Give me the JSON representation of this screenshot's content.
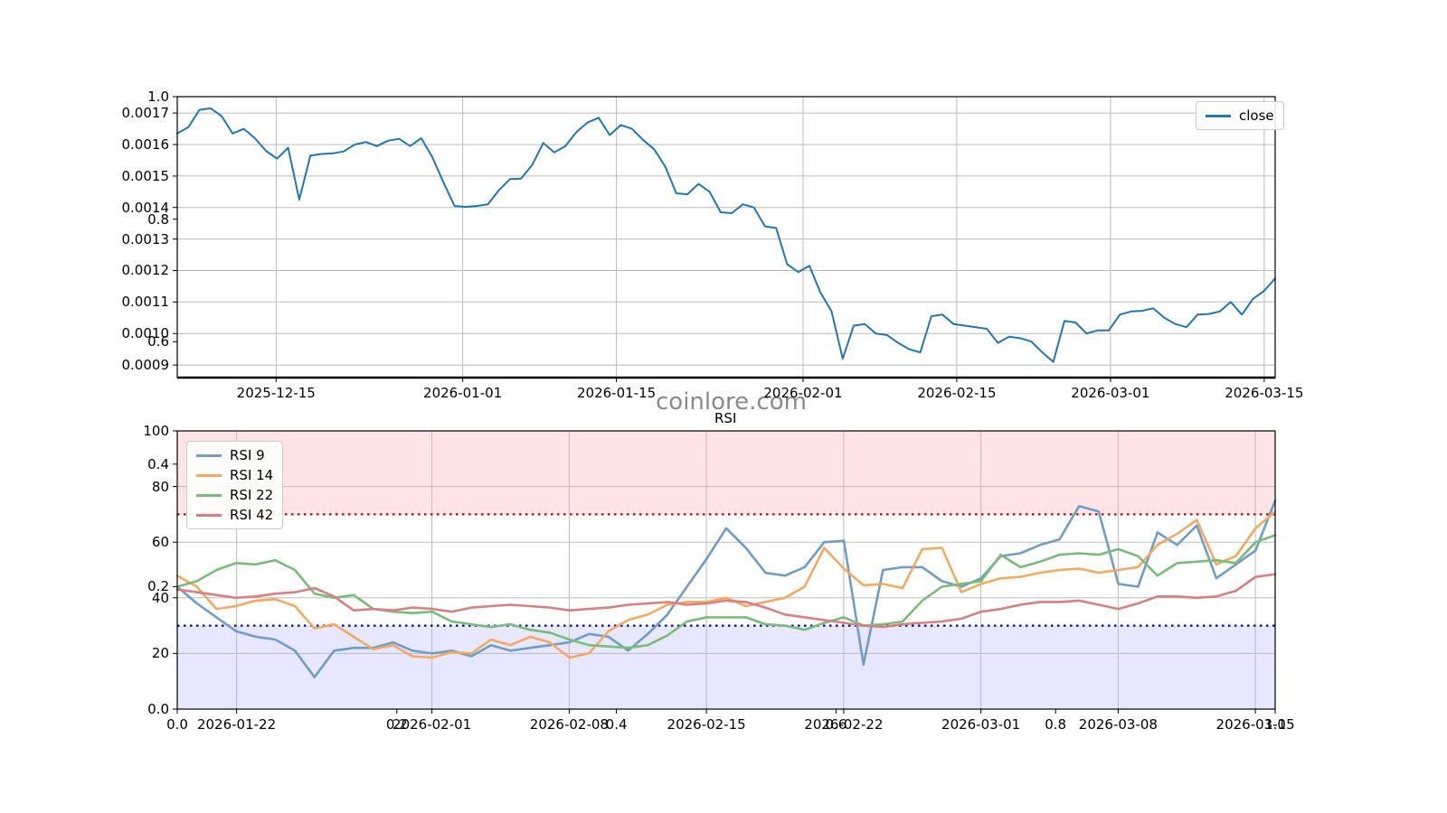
{
  "watermark": "coinlore.com",
  "accent_colors": {
    "close_line": "#1f77b4",
    "rsi9": "#6d9dc8",
    "rsi14": "#f4a95e",
    "rsi22": "#77bd77",
    "rsi42": "#da7f7f",
    "overbought_line": "#c80000",
    "oversold_line": "#0000b4",
    "overbought_band": "rgba(255,50,60,0.13)",
    "oversold_band": "rgba(60,60,255,0.12)",
    "grid": "#bbbbbb",
    "watermark_gray": "#8a8a8a"
  },
  "chart_data": [
    {
      "type": "line",
      "title": "",
      "xlabel": "",
      "ylabel": "",
      "x_start": "2025-12-06",
      "x_end": "2026-03-16",
      "legend_position": "upper right",
      "grid": true,
      "ylim": [
        8.6,
        17.52
      ],
      "y_scale_note": "values in units of 0.0001",
      "y_ticks": [
        {
          "label": "0.0017",
          "v": 17
        },
        {
          "label": "0.0016",
          "v": 16
        },
        {
          "label": "0.0015",
          "v": 15
        },
        {
          "label": "0.0014",
          "v": 14
        },
        {
          "label": "0.0013",
          "v": 13
        },
        {
          "label": "0.0012",
          "v": 12
        },
        {
          "label": "0.0011",
          "v": 11
        },
        {
          "label": "0.0010",
          "v": 10
        },
        {
          "label": "0.0009",
          "v": 9
        }
      ],
      "x_ticks": [
        {
          "label": "2025-12-15",
          "f": 0.09
        },
        {
          "label": "2026-01-01",
          "f": 0.26
        },
        {
          "label": "2026-01-15",
          "f": 0.4
        },
        {
          "label": "2026-02-01",
          "f": 0.57
        },
        {
          "label": "2026-02-15",
          "f": 0.71
        },
        {
          "label": "2026-03-01",
          "f": 0.85
        },
        {
          "label": "2026-03-15",
          "f": 0.99
        }
      ],
      "thick_bottom": true,
      "line_width": 2,
      "series": [
        {
          "name": "close",
          "color": "#1f77b4",
          "values": [
            16.35,
            16.55,
            17.1,
            17.15,
            16.9,
            16.35,
            16.5,
            16.2,
            15.8,
            15.55,
            15.9,
            14.25,
            15.65,
            15.7,
            15.72,
            15.78,
            16.0,
            16.08,
            15.95,
            16.12,
            16.18,
            15.95,
            16.2,
            15.6,
            14.8,
            14.05,
            14.02,
            14.05,
            14.1,
            14.55,
            14.9,
            14.92,
            15.35,
            16.05,
            15.75,
            15.95,
            16.4,
            16.7,
            16.85,
            16.3,
            16.62,
            16.5,
            16.15,
            15.85,
            15.3,
            14.45,
            14.42,
            14.75,
            14.5,
            13.85,
            13.82,
            14.1,
            14.0,
            13.4,
            13.35,
            12.2,
            11.95,
            12.15,
            11.3,
            10.7,
            9.2,
            10.25,
            10.3,
            10.0,
            9.95,
            9.7,
            9.5,
            9.4,
            10.55,
            10.6,
            10.3,
            10.25,
            10.2,
            10.15,
            9.7,
            9.9,
            9.85,
            9.75,
            9.4,
            9.1,
            10.4,
            10.35,
            10.0,
            10.1,
            10.1,
            10.6,
            10.7,
            10.72,
            10.8,
            10.5,
            10.3,
            10.2,
            10.6,
            10.62,
            10.7,
            11.0,
            10.6,
            11.1,
            11.35,
            11.75
          ]
        }
      ]
    },
    {
      "type": "line",
      "title": "RSI",
      "xlabel": "",
      "ylabel": "",
      "x_start": "2026-01-19",
      "x_end": "2026-03-16",
      "legend_position": "upper left",
      "grid": true,
      "ylim": [
        0,
        100
      ],
      "y_ticks": [
        {
          "label": "100",
          "v": 100
        },
        {
          "label": "80",
          "v": 80
        },
        {
          "label": "60",
          "v": 60
        },
        {
          "label": "40",
          "v": 40
        },
        {
          "label": "20",
          "v": 20
        }
      ],
      "x_ticks": [
        {
          "label": "2026-01-22",
          "f": 0.054
        },
        {
          "label": "2026-02-01",
          "f": 0.232
        },
        {
          "label": "2026-02-08",
          "f": 0.357
        },
        {
          "label": "2026-02-15",
          "f": 0.482
        },
        {
          "label": "2026-02-22",
          "f": 0.607
        },
        {
          "label": "2026-03-01",
          "f": 0.732
        },
        {
          "label": "2026-03-08",
          "f": 0.857
        },
        {
          "label": "2026-03-15",
          "f": 0.982
        }
      ],
      "bands": [
        {
          "from": 70,
          "to": 100,
          "color": "rgba(255,50,60,0.13)",
          "name": "overbought-band"
        },
        {
          "from": 0,
          "to": 30,
          "color": "rgba(60,60,255,0.12)",
          "name": "oversold-band"
        }
      ],
      "hlines": [
        {
          "v": 70,
          "color": "#c80000",
          "style": "dotted",
          "name": "overbought-threshold"
        },
        {
          "v": 30,
          "color": "#0000b4",
          "style": "dotted",
          "name": "oversold-threshold"
        }
      ],
      "thick_bottom": false,
      "line_width": 2.6,
      "series": [
        {
          "name": "RSI 9",
          "color": "#6d9dc8",
          "values": [
            44,
            38,
            33,
            28,
            26,
            25,
            21,
            11.5,
            21,
            22,
            22,
            24,
            21,
            20,
            21,
            19,
            23,
            21,
            22,
            23,
            24,
            27,
            26,
            21,
            27,
            34,
            44,
            54,
            65,
            58,
            49,
            48,
            51,
            60,
            60.5,
            16,
            50,
            51,
            51,
            46,
            44,
            47,
            55,
            56,
            59,
            61,
            73,
            71,
            45,
            44,
            63.5,
            59,
            66,
            47,
            52,
            57,
            75
          ]
        },
        {
          "name": "RSI 14",
          "color": "#f4a95e",
          "values": [
            48,
            44,
            36,
            37,
            39,
            39.5,
            37,
            29,
            30.5,
            26,
            21.5,
            23,
            19,
            18.5,
            20.5,
            20,
            25,
            23,
            26,
            24,
            18.5,
            20,
            28,
            32,
            34,
            37.5,
            38.5,
            38.5,
            40,
            37,
            38.5,
            40,
            44,
            58,
            50.5,
            44.5,
            45,
            43.5,
            57.5,
            58,
            42,
            45,
            47,
            47.5,
            49,
            50,
            50.5,
            49,
            50,
            51,
            59,
            63,
            68,
            52,
            55,
            65,
            71
          ]
        },
        {
          "name": "RSI 22",
          "color": "#77bd77",
          "values": [
            44,
            46,
            50,
            52.5,
            52,
            53.5,
            50,
            41.5,
            40,
            41,
            36,
            35,
            34.5,
            35,
            31.5,
            30.5,
            29.5,
            30.5,
            28.5,
            27.5,
            25,
            23,
            22.5,
            22,
            23,
            26.5,
            31.5,
            33,
            33,
            33,
            30.5,
            30,
            28.5,
            31,
            33,
            30,
            30.5,
            31.5,
            39,
            44,
            45,
            46,
            55.5,
            51,
            53,
            55.5,
            56,
            55.5,
            57.5,
            55,
            48,
            52.5,
            53,
            53.5,
            52.5,
            60,
            62.5
          ]
        },
        {
          "name": "RSI 42",
          "color": "#da7f7f",
          "values": [
            43,
            42,
            41,
            40,
            40.5,
            41.5,
            42,
            43.5,
            40.5,
            35.5,
            36,
            35.5,
            36.5,
            36,
            35,
            36.5,
            37,
            37.5,
            37,
            36.5,
            35.5,
            36,
            36.5,
            37.5,
            38,
            38.5,
            37.5,
            38,
            39,
            38.5,
            36.5,
            34,
            33,
            32,
            31,
            30,
            29.5,
            30.5,
            31,
            31.5,
            32.5,
            35,
            36,
            37.5,
            38.5,
            38.5,
            39,
            37.5,
            36,
            38,
            40.5,
            40.5,
            40,
            40.5,
            42.5,
            47.5,
            48.5
          ]
        }
      ]
    }
  ],
  "overlay_axis": {
    "left_ticks": [
      {
        "label": "1.0",
        "f": 0.0
      },
      {
        "label": "0.8",
        "f": 0.2
      },
      {
        "label": "0.6",
        "f": 0.4
      },
      {
        "label": "0.4",
        "f": 0.6
      },
      {
        "label": "0.2",
        "f": 0.8
      },
      {
        "label": "0.0",
        "f": 1.0
      }
    ],
    "bottom_ticks": [
      {
        "label": "0.0",
        "f": 0.0
      },
      {
        "label": "0.2",
        "f": 0.2
      },
      {
        "label": "0.4",
        "f": 0.4
      },
      {
        "label": "0.6",
        "f": 0.6
      },
      {
        "label": "0.8",
        "f": 0.8
      },
      {
        "label": "1.0",
        "f": 1.0
      }
    ]
  }
}
